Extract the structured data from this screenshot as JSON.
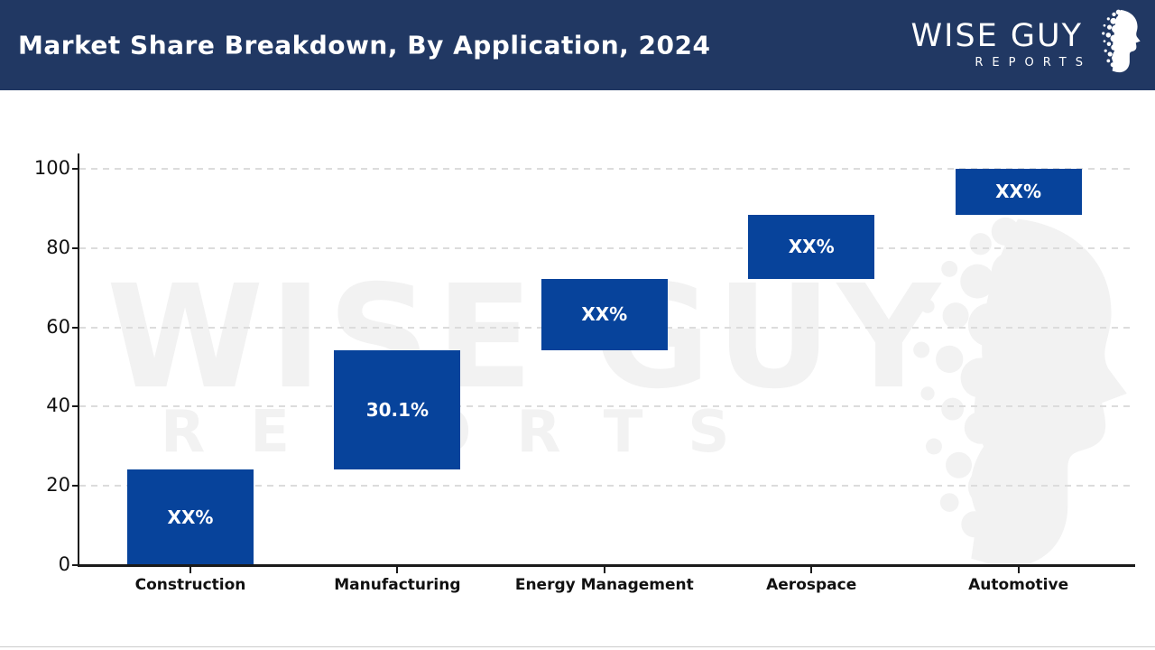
{
  "header": {
    "title": "Market Share Breakdown, By Application, 2024",
    "logo_line1": "WISE GUY",
    "logo_line2": "REPORTS"
  },
  "watermark": {
    "line1": "WISE GUY",
    "line2": "REPORTS"
  },
  "colors": {
    "header_bg": "#213863",
    "bar_blue": "#07439b",
    "grid_gray": "#dcdcdc",
    "watermark_gray": "#f2f2f2",
    "text_black": "#111111"
  },
  "chart_data": {
    "type": "bar",
    "subtype": "waterfall",
    "title": "Market Share Breakdown, By Application, 2024",
    "xlabel": "",
    "ylabel": "",
    "categories": [
      "Construction",
      "Manufacturing",
      "Energy Management",
      "Aerospace",
      "Automotive"
    ],
    "segments": [
      {
        "category": "Construction",
        "start": 0,
        "end": 24.1,
        "label": "XX%"
      },
      {
        "category": "Manufacturing",
        "start": 24.1,
        "end": 54.2,
        "label": "30.1%"
      },
      {
        "category": "Energy Management",
        "start": 54.2,
        "end": 72.3,
        "label": "XX%"
      },
      {
        "category": "Aerospace",
        "start": 72.3,
        "end": 88.4,
        "label": "XX%"
      },
      {
        "category": "Automotive",
        "start": 88.4,
        "end": 100,
        "label": "XX%"
      }
    ],
    "y_ticks": [
      0,
      20,
      40,
      60,
      80,
      100
    ],
    "ylim": [
      0,
      104
    ],
    "grid": "horizontal-dashed",
    "legend": "none",
    "bar_color": "#07439b"
  }
}
